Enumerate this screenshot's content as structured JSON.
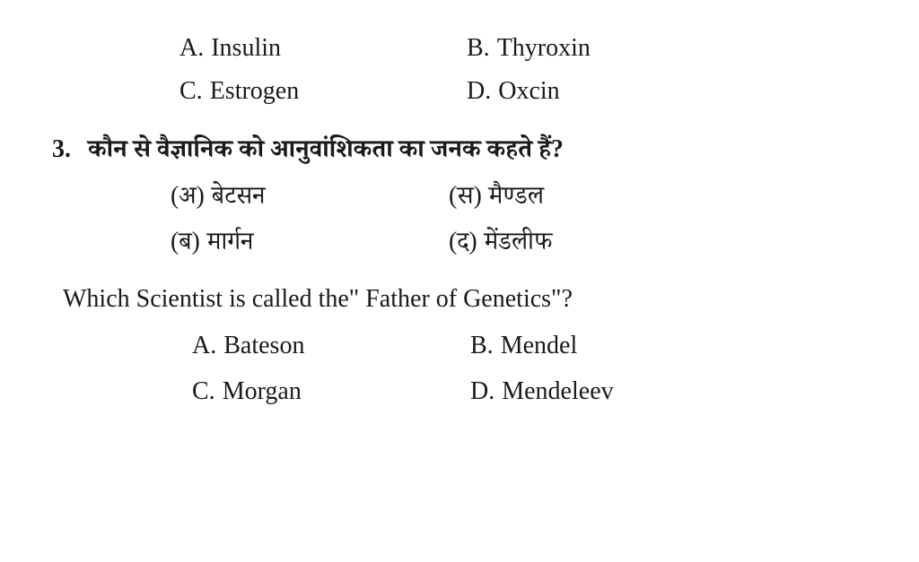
{
  "prev_question": {
    "options": [
      {
        "label": "A.",
        "text": "Insulin"
      },
      {
        "label": "B.",
        "text": "Thyroxin"
      },
      {
        "label": "C.",
        "text": "Estrogen"
      },
      {
        "label": "D.",
        "text": "Oxcin"
      }
    ]
  },
  "question3": {
    "number": "3.",
    "text_hi": "कौन से वैज्ञानिक को आनुवांशिकता का जनक कहते हैं?",
    "options_hi": [
      {
        "label": "(अ)",
        "text": "बेटसन"
      },
      {
        "label": "(स)",
        "text": "मैण्डल"
      },
      {
        "label": "(ब)",
        "text": "मार्गन"
      },
      {
        "label": "(द)",
        "text": "मेंडलीफ"
      }
    ],
    "text_en": "Which Scientist is called the\" Father of Genetics\"?",
    "options_en": [
      {
        "label": "A.",
        "text": "Bateson"
      },
      {
        "label": "B.",
        "text": "Mendel"
      },
      {
        "label": "C.",
        "text": "Morgan"
      },
      {
        "label": "D.",
        "text": "Mendeleev"
      }
    ]
  },
  "style": {
    "font_size_pt": 28,
    "text_color": "#1a1a1a",
    "background_color": "#ffffff"
  }
}
